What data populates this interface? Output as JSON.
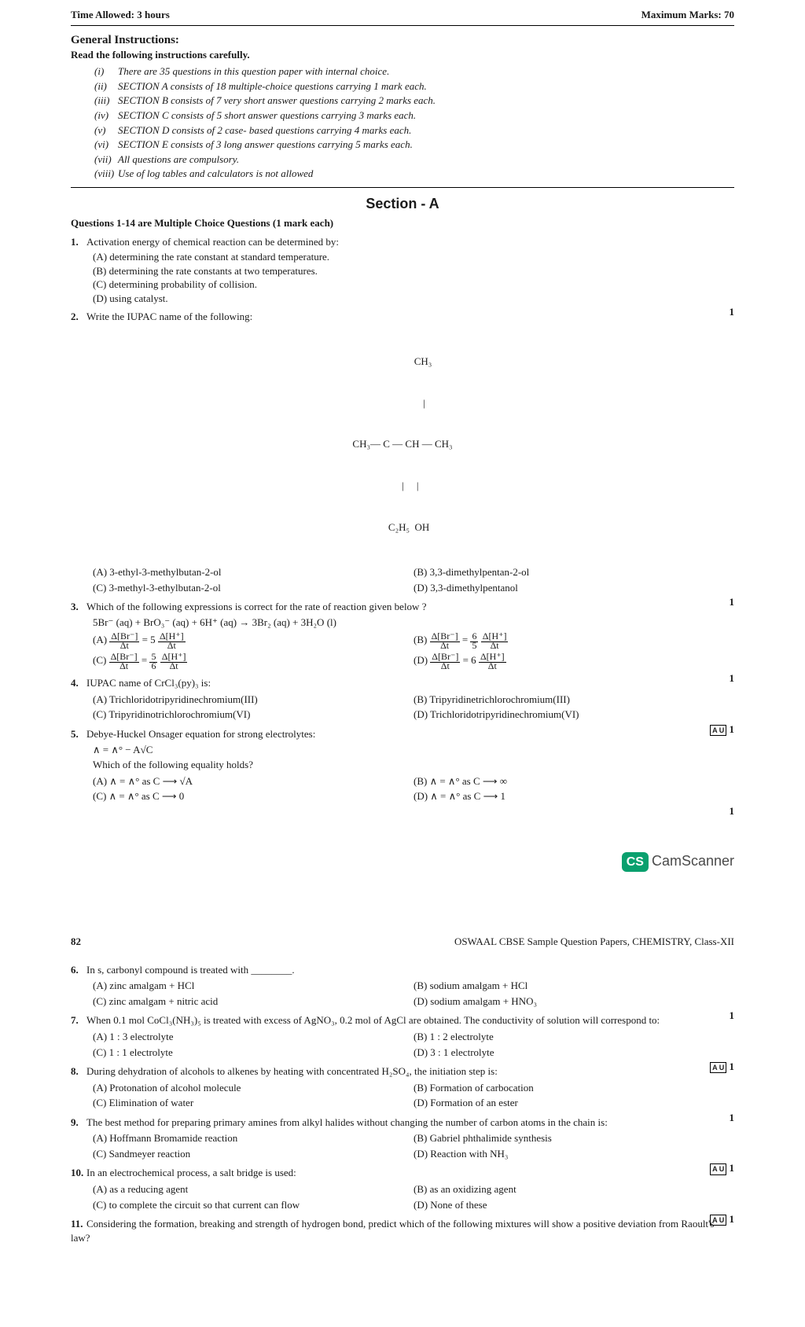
{
  "header": {
    "time": "Time Allowed: 3 hours",
    "marks": "Maximum Marks: 70"
  },
  "gi": {
    "title": "General Instructions:",
    "sub": "Read the following instructions carefully.",
    "items": [
      {
        "r": "(i)",
        "t": "There are 35 questions in this question paper with internal choice."
      },
      {
        "r": "(ii)",
        "t": "SECTION A consists of 18 multiple-choice questions carrying 1 mark each."
      },
      {
        "r": "(iii)",
        "t": "SECTION B consists of 7 very short answer questions carrying 2 marks each."
      },
      {
        "r": "(iv)",
        "t": "SECTION C consists of 5 short answer questions carrying 3 marks each."
      },
      {
        "r": "(v)",
        "t": "SECTION D consists of 2 case- based questions carrying 4 marks each."
      },
      {
        "r": "(vi)",
        "t": "SECTION E consists of 3 long answer questions carrying 5 marks each."
      },
      {
        "r": "(vii)",
        "t": "All questions are compulsory."
      },
      {
        "r": "(viii)",
        "t": "Use of log tables and calculators is not allowed"
      }
    ]
  },
  "sectionA": "Section - A",
  "mcqHead": "Questions 1-14 are Multiple Choice Questions (1 mark each)",
  "q1": {
    "n": "1.",
    "t": "Activation energy of chemical reaction can be determined by:",
    "a": "(A) determining the rate constant at standard temperature.",
    "b": "(B) determining the rate constants at two temperatures.",
    "c": "(C) determining probability of collision.",
    "d": "(D) using catalyst.",
    "m": "1"
  },
  "q2": {
    "n": "2.",
    "t": "Write the IUPAC name of the following:",
    "formula_l1": "                CH₃",
    "formula_l2": "                 |",
    "formula_l3": "CH₃— C — CH — CH₃",
    "formula_l4": "      |     |",
    "formula_l5": "     C₂H₅  OH",
    "a": "(A) 3-ethyl-3-methylbutan-2-ol",
    "b": "(B) 3,3-dimethylpentan-2-ol",
    "c": "(C) 3-methyl-3-ethylbutan-2-ol",
    "d": "(D) 3,3-dimethylpentanol",
    "m": "1"
  },
  "q3": {
    "n": "3.",
    "t": "Which of the following expressions is correct for the rate of reaction given below ?",
    "rxn": "5Br⁻ (aq) + BrO₃⁻ (aq) + 6H⁺ (aq) → 3Br₂ (aq) + 3H₂O (l)",
    "a_lhs_n": "Δ[Br⁻]",
    "a_lhs_d": "Δt",
    "a_mid": " = 5 ",
    "a_rhs_n": "Δ[H⁺]",
    "a_rhs_d": "Δt",
    "b_lhs_n": "Δ[Br⁻]",
    "b_lhs_d": "Δt",
    "b_mid_n": "6",
    "b_mid_d": "5",
    "b_rhs_n": "Δ[H⁺]",
    "b_rhs_d": "Δt",
    "c_lhs_n": "Δ[Br⁻]",
    "c_lhs_d": "Δt",
    "c_mid_n": "5",
    "c_mid_d": "6",
    "c_rhs_n": "Δ[H⁺]",
    "c_rhs_d": "Δt",
    "d_lhs_n": "Δ[Br⁻]",
    "d_lhs_d": "Δt",
    "d_mid": " = 6 ",
    "d_rhs_n": "Δ[H⁺]",
    "d_rhs_d": "Δt",
    "m": "1"
  },
  "q4": {
    "n": "4.",
    "t": "IUPAC name of CrCl₃(py)₃ is:",
    "a": "(A) Trichloridotripyridinechromium(III)",
    "b": "(B) Tripyridinetrichlorochromium(III)",
    "c": "(C) Tripyridinotrichlorochromium(VI)",
    "d": "(D) Trichloridotripyridinechromium(VI)",
    "m": "1",
    "badge": "A U"
  },
  "q5": {
    "n": "5.",
    "t": "Debye-Huckel Onsager equation for strong electrolytes:",
    "eq": "∧ = ∧° − A√C",
    "sub": "Which of the following equality holds?",
    "a": "(A) ∧ = ∧° as C ⟶ √A",
    "b": "(B) ∧ = ∧° as C ⟶ ∞",
    "c": "(C) ∧ = ∧° as C ⟶ 0",
    "d": "(D) ∧ = ∧° as C ⟶ 1",
    "m": "1"
  },
  "cam": {
    "badge": "CS",
    "t": "CamScanner"
  },
  "p2": {
    "num": "82",
    "title": "OSWAAL CBSE Sample Question Papers, CHEMISTRY, Class-XII"
  },
  "q6": {
    "n": "6.",
    "t": "In s, carbonyl compound is treated with ________.",
    "a": "(A) zinc amalgam + HCl",
    "b": "(B) sodium amalgam + HCl",
    "c": "(C) zinc amalgam + nitric acid",
    "d": "(D) sodium amalgam + HNO₃",
    "m": "1"
  },
  "q7": {
    "n": "7.",
    "t": "When 0.1 mol CoCl₃(NH₃)₅ is treated with excess of AgNO₃, 0.2 mol of AgCl are obtained. The conductivity of solution will correspond to:",
    "a": "(A) 1 : 3 electrolyte",
    "b": "(B) 1 : 2 electrolyte",
    "c": "(C) 1 : 1 electrolyte",
    "d": "(D) 3 : 1 electrolyte",
    "m": "1",
    "badge": "A U"
  },
  "q8": {
    "n": "8.",
    "t": "During dehydration of alcohols to alkenes by heating with concentrated H₂SO₄, the initiation step is:",
    "a": "(A) Protonation of alcohol molecule",
    "b": "(B) Formation of carbocation",
    "c": "(C) Elimination of water",
    "d": "(D) Formation of an ester",
    "m": "1"
  },
  "q9": {
    "n": "9.",
    "t": "The best method for preparing primary amines from alkyl halides without changing the number of carbon atoms in the chain is:",
    "a": "(A) Hoffmann Bromamide reaction",
    "b": "(B) Gabriel phthalimide synthesis",
    "c": "(C) Sandmeyer reaction",
    "d": "(D) Reaction with NH₃",
    "m": "1",
    "badge": "A U"
  },
  "q10": {
    "n": "10.",
    "t": "In an electrochemical process, a salt bridge is used:",
    "a": "(A) as a reducing agent",
    "b": "(B) as an oxidizing agent",
    "c": "(C) to complete the circuit so that current can flow",
    "d": "(D) None of these",
    "m": "1",
    "badge": "A U"
  },
  "q11": {
    "n": "11.",
    "t": "Considering the formation, breaking and strength of hydrogen bond, predict which of the following mixtures will show a positive deviation from Raoult's law?"
  }
}
